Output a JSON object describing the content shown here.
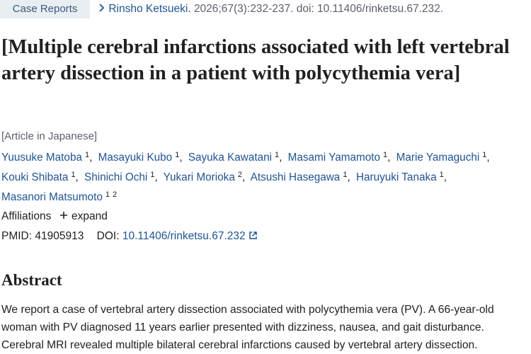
{
  "header": {
    "publication_type": "Case Reports",
    "journal": "Rinsho Ketsueki.",
    "citation": "2026;67(3):232-237. doi: 10.11406/rinketsu.67.232."
  },
  "title": "[Multiple cerebral infarctions associated with left vertebral artery dissection in a patient with polycythemia vera]",
  "language_note": "[Article in Japanese]",
  "author_separator": ",",
  "authors": [
    {
      "name": "Yuusuke Matoba",
      "affiliations": [
        1
      ]
    },
    {
      "name": "Masayuki Kubo",
      "affiliations": [
        1
      ]
    },
    {
      "name": "Sayuka Kawatani",
      "affiliations": [
        1
      ]
    },
    {
      "name": "Masami Yamamoto",
      "affiliations": [
        1
      ]
    },
    {
      "name": "Marie Yamaguchi",
      "affiliations": [
        1
      ]
    },
    {
      "name": "Kouki Shibata",
      "affiliations": [
        1
      ]
    },
    {
      "name": "Shinichi Ochi",
      "affiliations": [
        1
      ]
    },
    {
      "name": "Yukari Morioka",
      "affiliations": [
        2
      ]
    },
    {
      "name": "Atsushi Hasegawa",
      "affiliations": [
        1
      ]
    },
    {
      "name": "Haruyuki Tanaka",
      "affiliations": [
        1
      ]
    },
    {
      "name": "Masanori Matsumoto",
      "affiliations": [
        1,
        2
      ]
    }
  ],
  "affiliations": {
    "label": "Affiliations",
    "toggle": "expand"
  },
  "identifiers": {
    "pmid_label": "PMID:",
    "pmid": "41905913",
    "doi_label": "DOI:",
    "doi": "10.11406/rinketsu.67.232"
  },
  "abstract": {
    "heading": "Abstract",
    "text": "We report a case of vertebral artery dissection associated with polycythemia vera (PV). A 66-year-old woman with PV diagnosed 11 years earlier presented with dizziness, nausea, and gait disturbance. Cerebral MRI revealed multiple bilateral cerebral infarctions caused by vertebral artery dissection."
  }
}
